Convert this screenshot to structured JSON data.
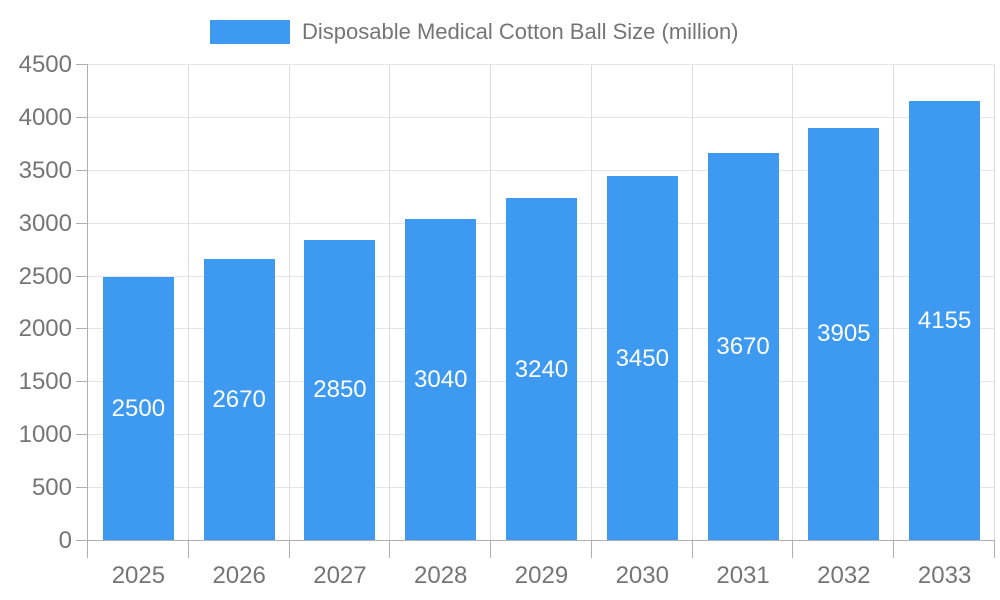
{
  "legend": {
    "label": "Disposable Medical Cotton Ball Size (million)",
    "position": "top"
  },
  "chart_data": {
    "type": "bar",
    "title": "Disposable Medical Cotton Ball Size (million)",
    "categories": [
      "2025",
      "2026",
      "2027",
      "2028",
      "2029",
      "2030",
      "2031",
      "2032",
      "2033"
    ],
    "values": [
      2500,
      2670,
      2850,
      3040,
      3240,
      3450,
      3670,
      3905,
      4155
    ],
    "bar_labels": [
      "2500",
      "2670",
      "2850",
      "3040",
      "3240",
      "3450",
      "3670",
      "3905",
      "4155"
    ],
    "xlabel": "",
    "ylabel": "",
    "ylim": [
      0,
      4500
    ],
    "ytick_interval": 500,
    "ytick_labels": [
      "0",
      "500",
      "1000",
      "1500",
      "2000",
      "2500",
      "3000",
      "3500",
      "4000",
      "4500"
    ],
    "grid": true,
    "legend_position": "top",
    "colors": {
      "bar": "#3D9AF0",
      "bar_label": "#FFFFFF",
      "axis_text": "#757575",
      "axis_line": "#AFAFAF",
      "grid_horizontal": "#E6E6E6",
      "grid_vertical": "#DCDCDC",
      "background": "#FFFFFF"
    }
  }
}
